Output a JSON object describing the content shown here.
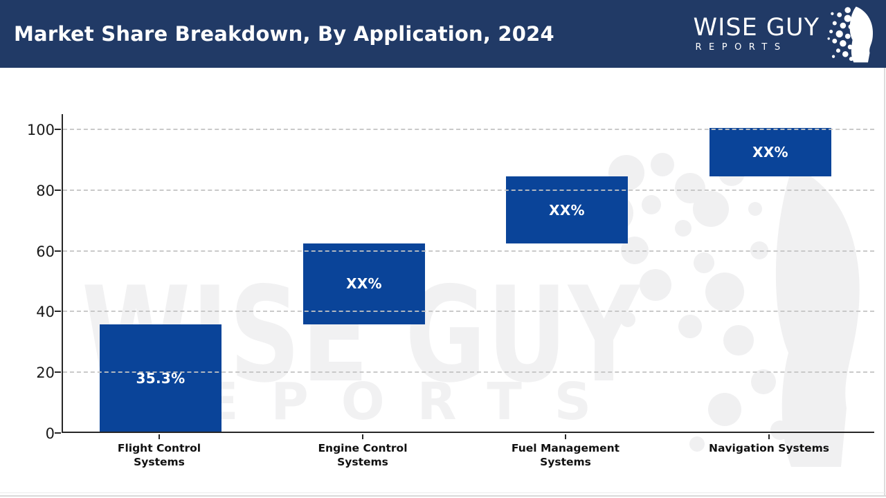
{
  "header": {
    "title": "Market Share Breakdown, By Application, 2024",
    "logo": {
      "wordmark": "WISE GUY",
      "sub": "REPORTS"
    }
  },
  "watermark": {
    "wordmark": "WISE GUY",
    "sub": "REPORTS"
  },
  "chart_data": {
    "type": "bar",
    "variant": "floating-waterfall",
    "title": "Market Share Breakdown, By Application, 2024",
    "categories": [
      "Flight Control Systems",
      "Engine Control Systems",
      "Fuel Management Systems",
      "Navigation Systems"
    ],
    "category_label_lines": [
      [
        "Flight Control",
        "Systems"
      ],
      [
        "Engine Control",
        "Systems"
      ],
      [
        "Fuel Management",
        "Systems"
      ],
      [
        "Navigation Systems"
      ]
    ],
    "segments": [
      {
        "category": "Flight Control Systems",
        "start": 0,
        "end": 35.3,
        "label": "35.3%"
      },
      {
        "category": "Engine Control Systems",
        "start": 35.3,
        "end": 62,
        "label": "XX%"
      },
      {
        "category": "Fuel Management Systems",
        "start": 62,
        "end": 84,
        "label": "XX%"
      },
      {
        "category": "Navigation Systems",
        "start": 84,
        "end": 100,
        "label": "XX%"
      }
    ],
    "xlabel": "",
    "ylabel": "",
    "ylim": [
      0,
      100
    ],
    "yticks": [
      0,
      20,
      40,
      60,
      80,
      100
    ],
    "grid": {
      "horizontal": true,
      "style": "dashed",
      "above_bars": true
    },
    "legend": "none",
    "colors": {
      "bar": "#0a4499",
      "bar_label": "#ffffff",
      "grid": "#c4c4c4",
      "axis": "#262626",
      "header_bg": "#213a66",
      "header_text": "#ffffff",
      "watermark": "#f1f1f2"
    }
  }
}
